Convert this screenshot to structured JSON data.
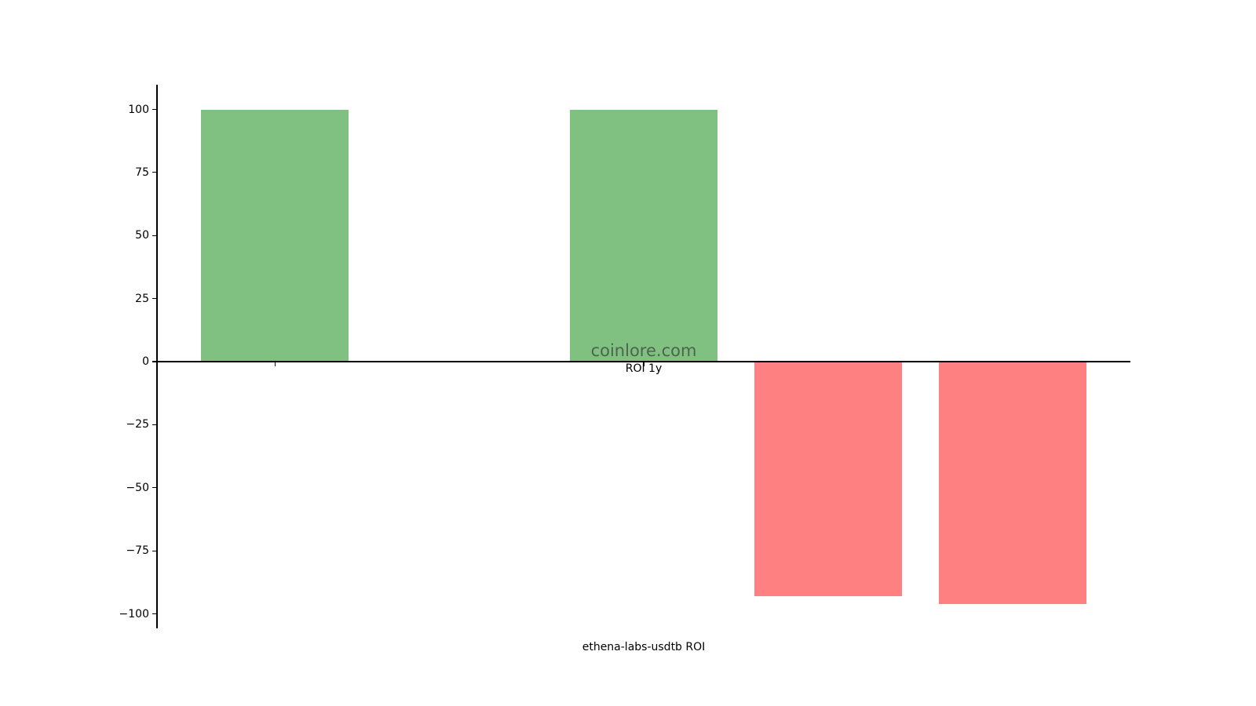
{
  "chart_data": {
    "type": "bar",
    "title": "ethena-labs-usdtb ROI",
    "watermark": "coinlore.com",
    "categories": [
      "",
      "",
      "ROI 1y",
      "",
      ""
    ],
    "values": [
      100,
      null,
      100,
      -93,
      -96
    ],
    "bar_color_keys": [
      "positive",
      null,
      "positive",
      "negative",
      "negative"
    ],
    "x_tick_slots": [
      0,
      2
    ],
    "y_ticks": [
      100,
      75,
      50,
      25,
      0,
      -25,
      -50,
      -75,
      -100
    ],
    "ylim": [
      -105.7,
      109.8
    ],
    "xlim": [
      -0.64,
      4.64
    ],
    "bar_width_units": 0.8,
    "xlabel": "",
    "ylabel": "",
    "grid": false,
    "legend": null,
    "colors": {
      "positive": "#80c080",
      "negative": "#ff8080",
      "axis": "#000000",
      "tick_text": "#000000",
      "watermark_text": "#4d4d4d",
      "background": "#ffffff"
    }
  }
}
